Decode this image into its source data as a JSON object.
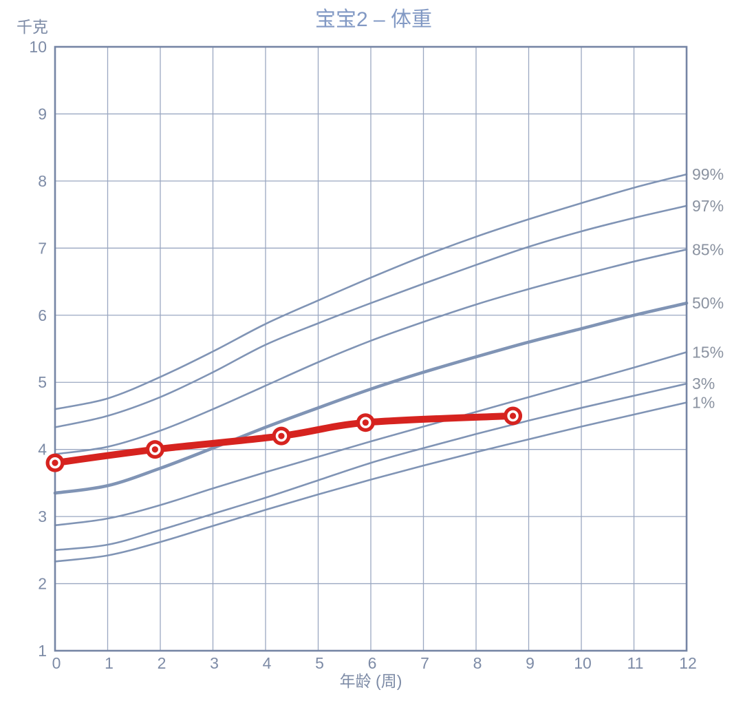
{
  "title": "宝宝2 – 体重",
  "y_axis": {
    "unit_label": "千克",
    "ticks": [
      10,
      9,
      8,
      7,
      6,
      5,
      4,
      3,
      2,
      1
    ]
  },
  "x_axis": {
    "label": "年龄 (周)",
    "ticks": [
      0,
      1,
      2,
      3,
      4,
      5,
      6,
      7,
      8,
      9,
      10,
      11,
      12
    ]
  },
  "colors": {
    "title": "#8299c4",
    "axis_frame": "#7585a4",
    "gridline": "#9aa7c1",
    "percentile_curve": "#8094b5",
    "tick_label": "#7d8ba6",
    "percentile_label": "#8a92a0",
    "baby_line": "#d6231f",
    "marker_ring": "#ffffff"
  },
  "chart_data": {
    "type": "line",
    "title": "宝宝2 – 体重",
    "xlabel": "年龄 (周)",
    "ylabel": "千克",
    "xlim": [
      0,
      12
    ],
    "ylim": [
      1,
      10
    ],
    "grid": true,
    "legend_position": "right-edge-labels",
    "x_weeks": [
      0,
      1,
      2,
      3,
      4,
      5,
      6,
      7,
      8,
      9,
      10,
      11,
      12
    ],
    "series": [
      {
        "name": "99%",
        "bold": false,
        "values": [
          4.6,
          4.76,
          5.08,
          5.46,
          5.87,
          6.22,
          6.56,
          6.88,
          7.17,
          7.43,
          7.67,
          7.9,
          8.1
        ]
      },
      {
        "name": "97%",
        "bold": false,
        "values": [
          4.33,
          4.5,
          4.78,
          5.15,
          5.56,
          5.88,
          6.18,
          6.47,
          6.75,
          7.02,
          7.25,
          7.45,
          7.63
        ]
      },
      {
        "name": "85%",
        "bold": false,
        "values": [
          3.93,
          4.04,
          4.28,
          4.6,
          4.95,
          5.3,
          5.62,
          5.9,
          6.16,
          6.39,
          6.6,
          6.8,
          6.98
        ]
      },
      {
        "name": "50%",
        "bold": true,
        "values": [
          3.35,
          3.46,
          3.72,
          4.02,
          4.33,
          4.62,
          4.9,
          5.15,
          5.38,
          5.6,
          5.8,
          6.0,
          6.18
        ]
      },
      {
        "name": "15%",
        "bold": false,
        "values": [
          2.87,
          2.97,
          3.17,
          3.42,
          3.66,
          3.89,
          4.12,
          4.34,
          4.56,
          4.78,
          5.0,
          5.22,
          5.45
        ]
      },
      {
        "name": "3%",
        "bold": false,
        "values": [
          2.5,
          2.58,
          2.8,
          3.04,
          3.28,
          3.54,
          3.8,
          4.02,
          4.23,
          4.43,
          4.62,
          4.8,
          4.98
        ]
      },
      {
        "name": "1%",
        "bold": false,
        "values": [
          2.33,
          2.42,
          2.62,
          2.86,
          3.1,
          3.33,
          3.55,
          3.76,
          3.96,
          4.15,
          4.34,
          4.52,
          4.7
        ]
      }
    ],
    "baby_series": {
      "name": "宝宝2",
      "points": [
        [
          0,
          3.8
        ],
        [
          1.9,
          4.0
        ],
        [
          4.3,
          4.2
        ],
        [
          5.9,
          4.4
        ],
        [
          8.7,
          4.5
        ]
      ]
    }
  }
}
